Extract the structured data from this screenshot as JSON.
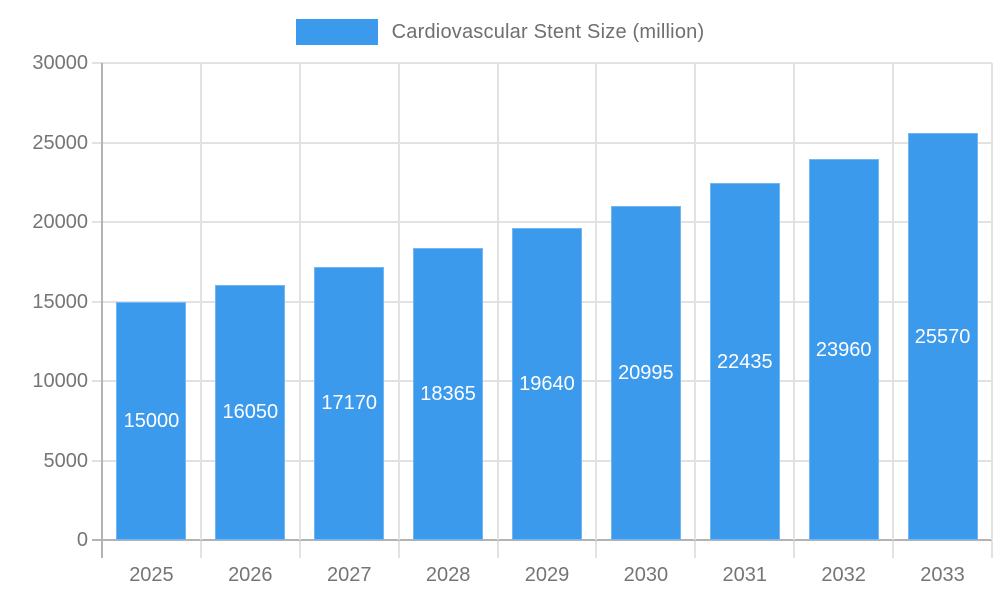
{
  "chart_data": {
    "type": "bar",
    "title": "Cardiovascular Stent Size (million)",
    "categories": [
      "2025",
      "2026",
      "2027",
      "2028",
      "2029",
      "2030",
      "2031",
      "2032",
      "2033"
    ],
    "values": [
      15000,
      16050,
      17170,
      18365,
      19640,
      20995,
      22435,
      23960,
      25570
    ],
    "xlabel": "",
    "ylabel": "",
    "ylim": [
      0,
      30000
    ],
    "yticks": [
      0,
      5000,
      10000,
      15000,
      20000,
      25000,
      30000
    ],
    "grid": "on",
    "legend_position": "top",
    "value_labels": "inside-center-white"
  },
  "legend": {
    "series_label": "Cardiovascular Stent Size (million)"
  },
  "colors": {
    "bar_fill": "#3c9aec",
    "bar_edge": "#74b6f1",
    "gridline": "#e2e2e2",
    "axis_line": "#b3b3b3",
    "tick_text": "#757575",
    "legend_text": "#6f6f6f",
    "value_text": "#ffffff",
    "background": "#ffffff"
  }
}
